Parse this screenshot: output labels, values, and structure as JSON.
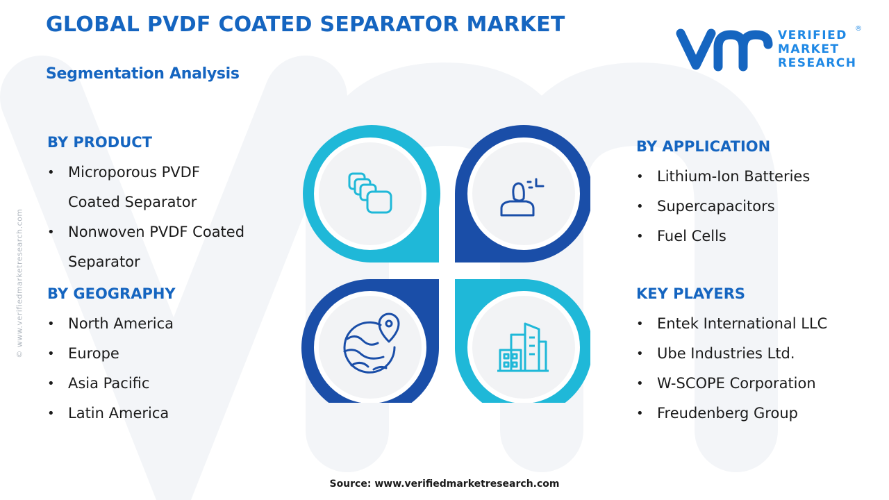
{
  "title": "GLOBAL PVDF COATED SEPARATOR MARKET",
  "subtitle": "Segmentation Analysis",
  "brand": {
    "line1": "VERIFIED",
    "line2": "MARKET",
    "line3": "RESEARCH",
    "registered": "®"
  },
  "side_url": "© www.verifiedmarketresearch.com",
  "segments": {
    "product": {
      "heading": "BY PRODUCT",
      "items": [
        {
          "line1": "Microporous PVDF",
          "line2": "Coated Separator"
        },
        {
          "line1": "Nonwoven PVDF Coated",
          "line2": "Separator"
        }
      ]
    },
    "geography": {
      "heading": "BY GEOGRAPHY",
      "items": [
        "North America",
        "Europe",
        "Asia Pacific",
        "Latin America"
      ]
    },
    "application": {
      "heading": "BY APPLICATION",
      "items": [
        "Lithium-Ion Batteries",
        "Supercapacitors",
        "Fuel Cells"
      ]
    },
    "key_players": {
      "heading": "KEY PLAYERS",
      "items": [
        "Entek International LLC",
        "Ube Industries Ltd.",
        "W-SCOPE Corporation",
        "Freudenberg Group"
      ]
    }
  },
  "diagram": {
    "icons": [
      "stacked-squares-icon",
      "person-icon",
      "globe-pin-icon",
      "buildings-icon"
    ],
    "colors": {
      "cyan": "#1fb8d8",
      "navy": "#1a4ea8",
      "inner": "#f2f3f5"
    }
  },
  "source": "Source: www.verifiedmarketresearch.com",
  "colors": {
    "title": "#1565c0",
    "text": "#1a1a1a"
  }
}
